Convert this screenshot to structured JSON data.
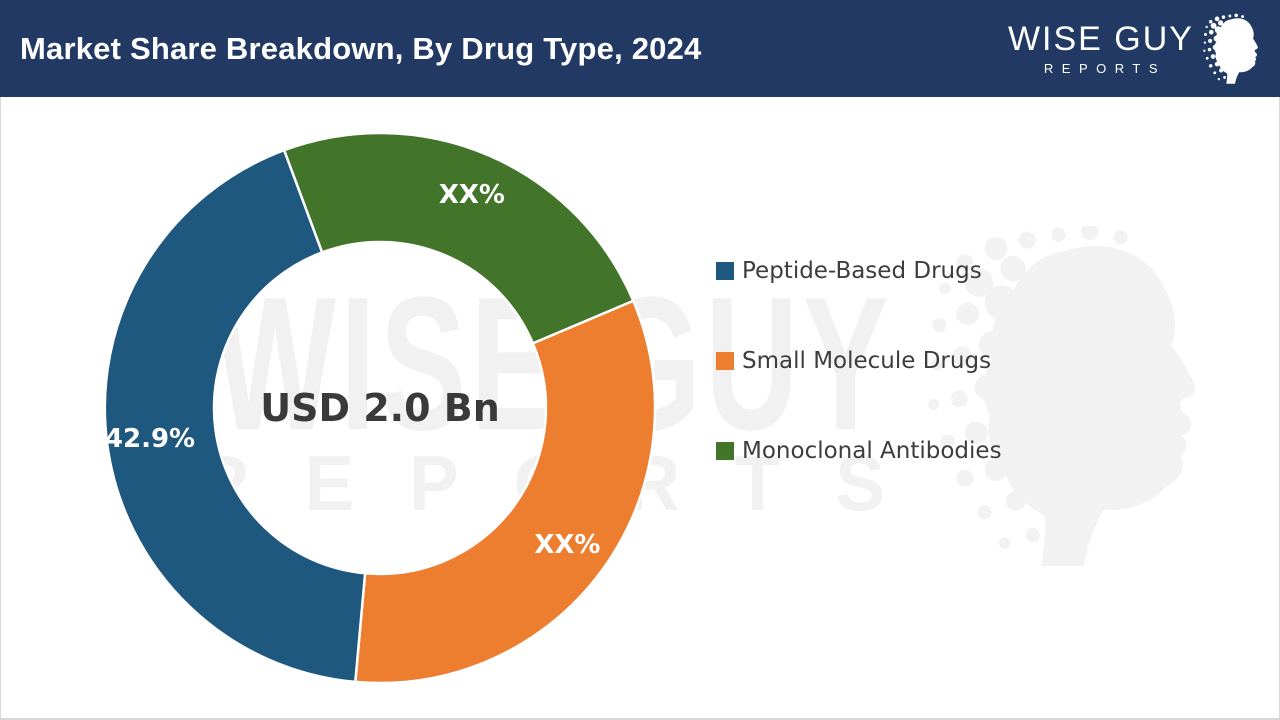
{
  "header": {
    "title": "Market Share Breakdown, By Drug Type, 2024",
    "logo": {
      "line1": "WISE GUY",
      "line2": "REPORTS"
    }
  },
  "watermark": {
    "line1": "WISE GUY",
    "line2": "REPORTS"
  },
  "chart_data": {
    "type": "pie",
    "subtype": "donut",
    "title": "Market Share Breakdown, By Drug Type, 2024",
    "center_label": "USD 2.0 Bn",
    "start_angle_deg": -20.4,
    "legend_position": "right",
    "segments": [
      {
        "name": "Monoclonal Antibodies",
        "pct": 24.3,
        "slice_label": "XX%",
        "color": "#42752A"
      },
      {
        "name": "Small Molecule Drugs",
        "pct": 32.8,
        "slice_label": "XX%",
        "color": "#ED7D2F"
      },
      {
        "name": "Peptide-Based Drugs",
        "pct": 42.9,
        "slice_label": "42.9%",
        "color": "#1F587F"
      }
    ],
    "legend_order": [
      2,
      1,
      0
    ]
  },
  "colors": {
    "header_bg": "#223A63",
    "blue": "#1F587F",
    "orange": "#ED7D2F",
    "green": "#42752A",
    "text_dark": "#3A3A3A",
    "watermark": "#F1F1F1",
    "border": "#D8D8D8"
  }
}
